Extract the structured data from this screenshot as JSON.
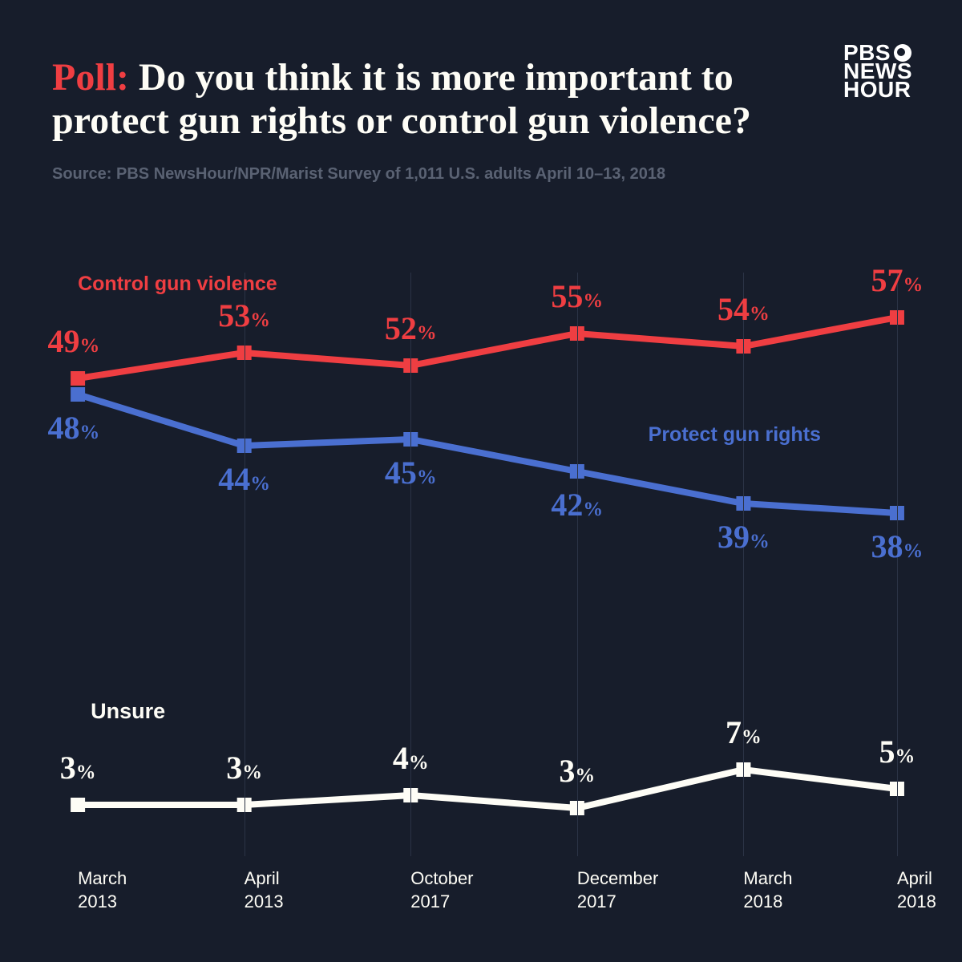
{
  "logo": {
    "line1": "PBS",
    "line2": "NEWS",
    "line3": "HOUR"
  },
  "headline": {
    "prefix": "Poll:",
    "rest": " Do you think it is more important to protect gun rights or control gun violence?",
    "fontsize": 48,
    "prefix_color": "#ef3e42",
    "rest_color": "#fefdf6"
  },
  "source": {
    "text": "Source: PBS NewsHour/NPR/Marist  Survey of 1,011 U.S. adults April 10–13, 2018",
    "fontsize": 20,
    "color": "#5a6273"
  },
  "chart": {
    "type": "line",
    "background_color": "#171d2b",
    "gridline_color": "#2b3345",
    "x_positions_pct": [
      3,
      22.4,
      41.8,
      61.2,
      80.6,
      98.5
    ],
    "x_labels": [
      {
        "l1": "March",
        "l2": "2013"
      },
      {
        "l1": "April",
        "l2": "2013"
      },
      {
        "l1": "October",
        "l2": "2017"
      },
      {
        "l1": "December",
        "l2": "2017"
      },
      {
        "l1": "March",
        "l2": "2018"
      },
      {
        "l1": "April",
        "l2": "2018"
      }
    ],
    "xlabel_fontsize": 22,
    "xlabel_color": "#fefdf6",
    "marker_size": 18,
    "line_width": 8,
    "series": {
      "control": {
        "label": "Control gun violence",
        "color": "#ef3e42",
        "values": [
          49,
          53,
          52,
          55,
          54,
          57
        ],
        "y_pct": [
          16.5,
          12.5,
          14.5,
          9.5,
          11.5,
          7.0
        ],
        "value_fontsize": 40,
        "label_fontsize": 25,
        "value_label_pos": [
          "above",
          "above",
          "above",
          "above",
          "above",
          "above"
        ],
        "series_label_x_pct": 3,
        "series_label_y_pct": 0
      },
      "protect": {
        "label": "Protect gun rights",
        "color": "#4a6fd0",
        "values": [
          48,
          44,
          45,
          42,
          39,
          38
        ],
        "y_pct": [
          19.0,
          27.0,
          26.0,
          31.0,
          36.0,
          37.5
        ],
        "value_fontsize": 40,
        "label_fontsize": 25,
        "value_label_pos": [
          "below",
          "below",
          "below",
          "below",
          "below",
          "below"
        ],
        "series_label_x_pct": 69.5,
        "series_label_y_pct": 23.5
      },
      "unsure": {
        "label": "Unsure",
        "color": "#fefdf6",
        "values": [
          3,
          3,
          4,
          3,
          7,
          5
        ],
        "y_pct": [
          83.0,
          83.0,
          81.5,
          83.5,
          77.5,
          80.5
        ],
        "value_fontsize": 40,
        "label_fontsize": 27,
        "value_label_pos": [
          "above",
          "above",
          "above",
          "above",
          "above",
          "above"
        ],
        "series_label_x_pct": 4.5,
        "series_label_y_pct": 66.5
      }
    }
  }
}
